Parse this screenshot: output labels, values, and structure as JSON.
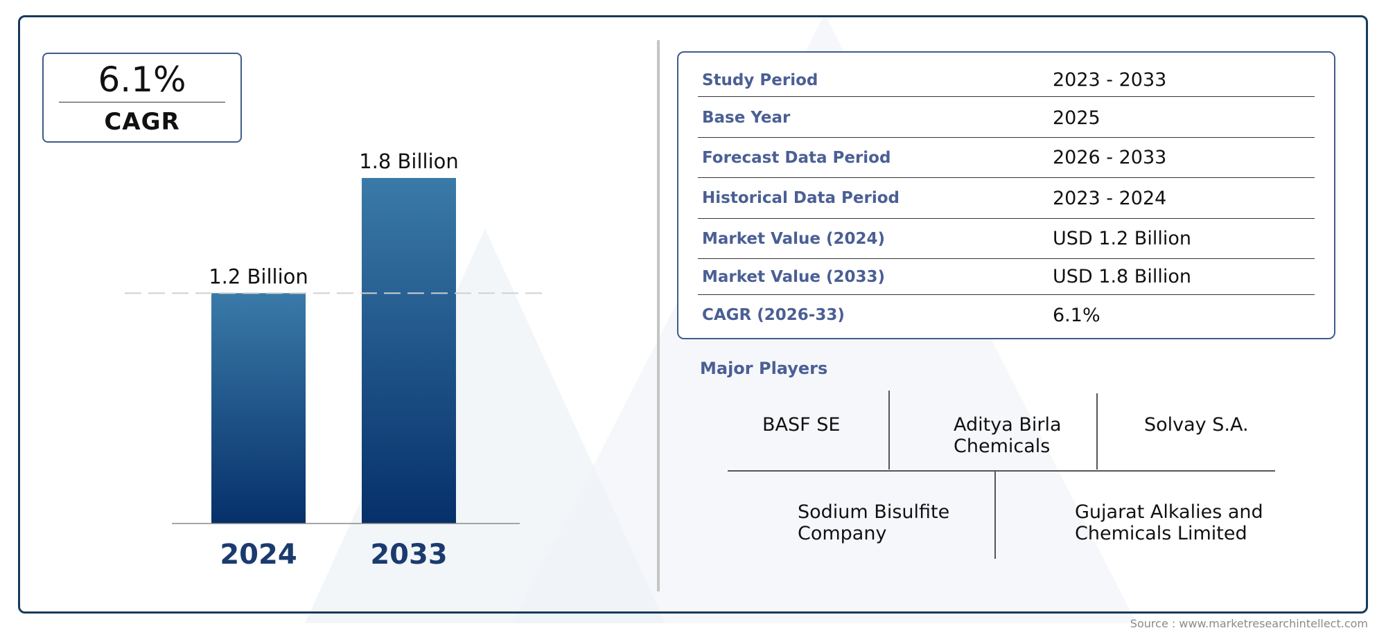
{
  "cagr_badge": {
    "value": "6.1%",
    "label": "CAGR"
  },
  "chart_data": {
    "type": "bar",
    "categories": [
      "2024",
      "2033"
    ],
    "values": [
      1.2,
      1.8
    ],
    "data_labels": [
      "1.2 Billion",
      "1.8 Billion"
    ],
    "ylim": [
      0,
      1.8
    ],
    "reference_line": 1.2,
    "title": "",
    "xlabel": "",
    "ylabel": "",
    "grid": false,
    "colors": {
      "bar_top": "#3a7aa8",
      "bar_bottom": "#06306a",
      "tick_label": "#1b3b6f"
    }
  },
  "summary_table": [
    {
      "label": "Study Period",
      "value": "2023 - 2033"
    },
    {
      "label": "Base Year",
      "value": "2025"
    },
    {
      "label": "Forecast Data Period",
      "value": "2026 - 2033"
    },
    {
      "label": "Historical Data Period",
      "value": "2023 - 2024"
    },
    {
      "label": "Market Value (2024)",
      "value": "USD 1.2 Billion"
    },
    {
      "label": "Market Value (2033)",
      "value": "USD 1.8 Billion"
    },
    {
      "label": "CAGR (2026-33)",
      "value": "6.1%"
    }
  ],
  "major_players": {
    "title": "Major Players",
    "row1": [
      [
        "BASF SE"
      ],
      [
        "Aditya Birla",
        "Chemicals"
      ],
      [
        "Solvay S.A."
      ]
    ],
    "row2": [
      [
        "Sodium Bisulfite",
        "Company"
      ],
      [
        "Gujarat Alkalies and",
        "Chemicals Limited"
      ]
    ]
  },
  "source": "Source : www.marketresearchintellect.com",
  "colors": {
    "frame": "#163a5a",
    "accent_text": "#4a5f94",
    "box_border": "#3e5c8a",
    "divider": "#c4c4c4"
  }
}
